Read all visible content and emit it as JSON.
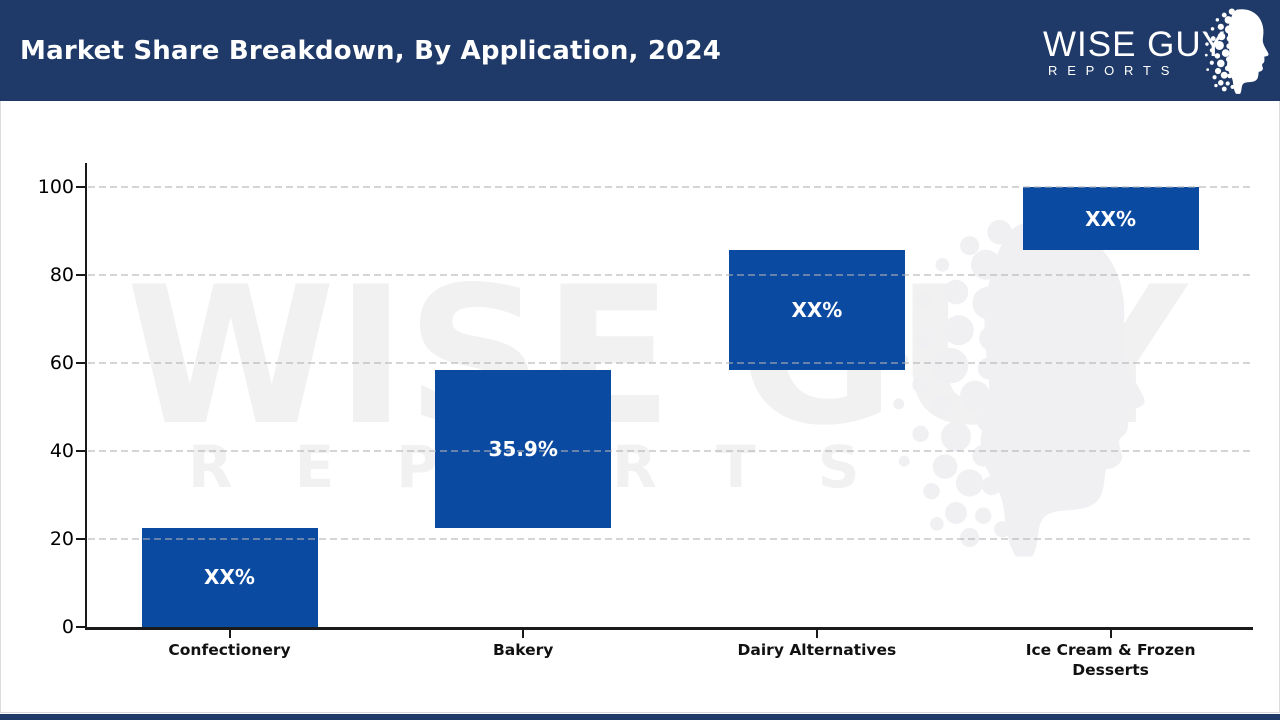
{
  "header": {
    "title": "Market Share Breakdown, By Application, 2024",
    "logo_line1": "WISE GUY",
    "logo_line2": "REPORTS"
  },
  "watermark": {
    "line1": "WISE GUY",
    "line2": "REPORTS"
  },
  "chart_data": {
    "type": "bar",
    "variant": "floating-waterfall-breakdown",
    "title": "Market Share Breakdown, By Application, 2024",
    "unit": "%",
    "categories": [
      "Confectionery",
      "Bakery",
      "Dairy Alternatives",
      "Ice Cream & Frozen Desserts"
    ],
    "segments": [
      {
        "category": "Confectionery",
        "start": 0,
        "end": 22.6,
        "approx_value": 22.6,
        "value_label": "XX%"
      },
      {
        "category": "Bakery",
        "start": 22.6,
        "end": 58.5,
        "approx_value": 35.9,
        "value_label": "35.9%"
      },
      {
        "category": "Dairy Alternatives",
        "start": 58.5,
        "end": 85.6,
        "approx_value": 27.1,
        "value_label": "XX%"
      },
      {
        "category": "Ice Cream & Frozen Desserts",
        "start": 85.6,
        "end": 100,
        "approx_value": 14.4,
        "value_label": "XX%"
      }
    ],
    "y_ticks": [
      0,
      20,
      40,
      60,
      80,
      100
    ],
    "ylim": [
      0,
      105.5
    ],
    "xlabel": "",
    "ylabel": "",
    "grid": "horizontal-dashed",
    "legend": "none",
    "bar_color": "#0b4aa1",
    "value_label_color": "#ffffff"
  },
  "colors": {
    "header_bg": "#1f3a68",
    "footer_bg": "#1f3a68",
    "title_text": "#ffffff",
    "bar": "#0b4aa1",
    "grid": "#d9d9d9",
    "axis": "#1a1a1a",
    "watermark": "#f1f1f2"
  }
}
